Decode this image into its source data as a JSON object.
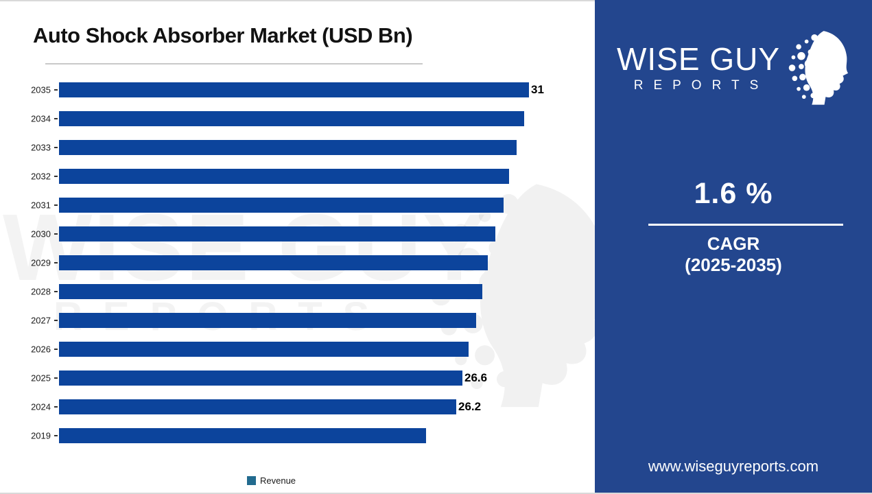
{
  "page": {
    "title": "Auto Shock Absorber Market (USD Bn)"
  },
  "chart_data": {
    "type": "bar",
    "orientation": "horizontal",
    "title": "Auto Shock Absorber Market (USD Bn)",
    "xlabel": "",
    "ylabel": "",
    "grid": false,
    "legend_position": "bottom-center",
    "legend_label": "Revenue",
    "bar_color": "#0c449c",
    "legend_swatch_color": "#226b8f",
    "xlim": [
      0,
      34.8
    ],
    "categories": [
      "2035",
      "2034",
      "2033",
      "2032",
      "2031",
      "2030",
      "2029",
      "2028",
      "2027",
      "2026",
      "2025",
      "2024",
      "2019"
    ],
    "values": [
      31,
      30.7,
      30.2,
      29.7,
      29.3,
      28.8,
      28.3,
      27.9,
      27.5,
      27.0,
      26.6,
      26.2,
      24.2
    ],
    "data_labels": [
      "31",
      "",
      "",
      "",
      "",
      "",
      "",
      "",
      "",
      "",
      "26.6",
      "26.2",
      ""
    ]
  },
  "watermark": {
    "line1": "WISE GUY",
    "line2": "REPORTS"
  },
  "sidebar": {
    "background_color": "#23468e",
    "logo_line1": "WISE GUY",
    "logo_line2": "REPORTS",
    "cagr_value": "1.6 %",
    "cagr_line1": "CAGR",
    "cagr_line2": "(2025-2035)",
    "website": "www.wiseguyreports.com"
  }
}
